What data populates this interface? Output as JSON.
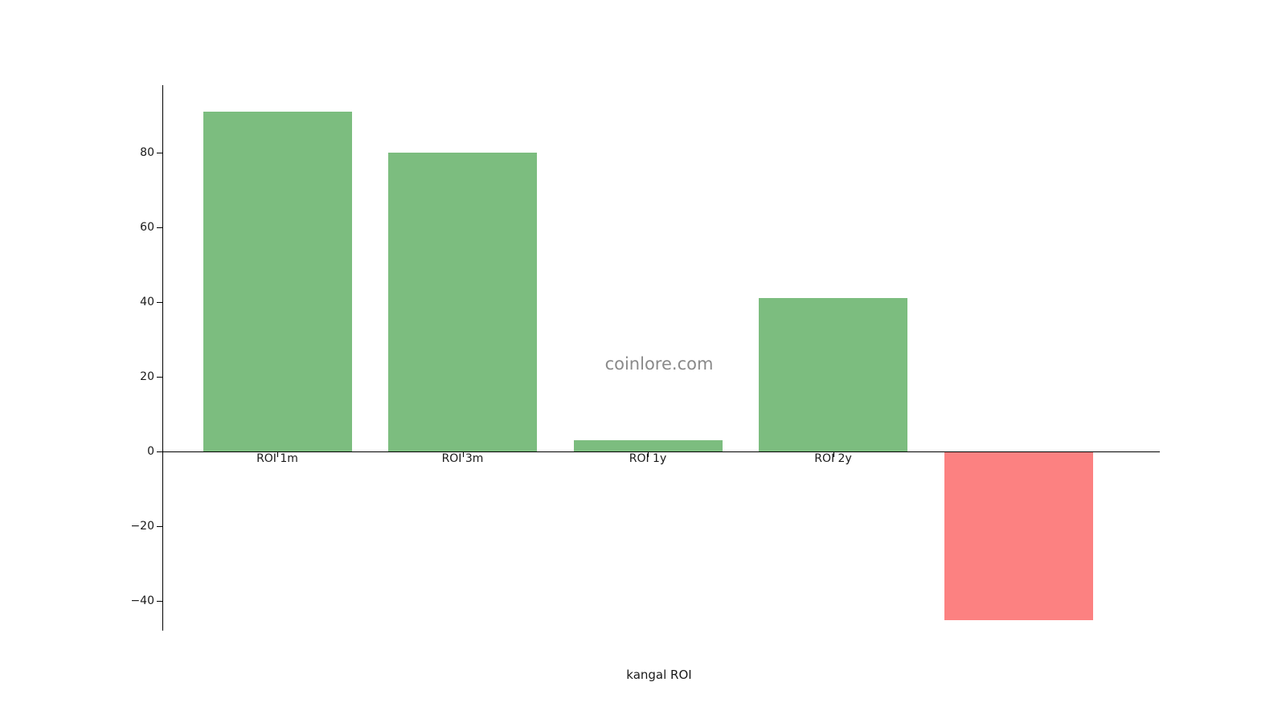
{
  "chart_data": {
    "type": "bar",
    "categories": [
      "ROI 1m",
      "ROI 3m",
      "ROI 1y",
      "ROI 2y",
      ""
    ],
    "values": [
      91,
      80,
      3,
      41,
      -45
    ],
    "title": "",
    "xlabel": "kangal ROI",
    "watermark": "coinlore.com",
    "yticks": [
      80,
      60,
      40,
      20,
      0,
      -20,
      -40
    ],
    "ylim": [
      -48,
      98
    ],
    "grid": false,
    "legend": null,
    "positive_color": "#7cbd7f",
    "negative_color": "#fc8181",
    "axis_color": "#000000",
    "text_color": "#1a1a1a",
    "watermark_color": "#8a8a8a",
    "background_color": "#ffffff"
  }
}
